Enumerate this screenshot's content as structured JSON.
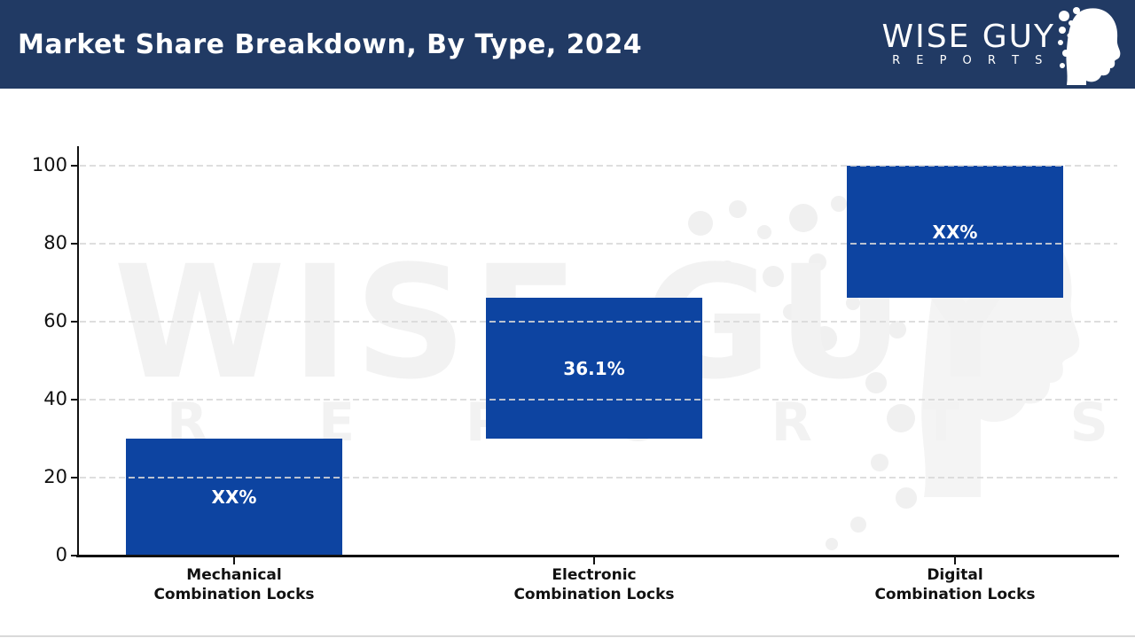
{
  "header": {
    "title": "Market Share Breakdown, By Type, 2024",
    "logo": {
      "wordmark": "WISE GUY",
      "subtext": "R E P O R T S"
    }
  },
  "watermark": {
    "line1": "WISE GUY",
    "line2": "R E P O R T S"
  },
  "chart_data": {
    "type": "bar",
    "subtype": "floating-waterfall",
    "title": "Market Share Breakdown, By Type, 2024",
    "categories": [
      "Mechanical Combination Locks",
      "Electronic Combination Locks",
      "Digital Combination Locks"
    ],
    "bars": [
      {
        "category": "Mechanical Combination Locks",
        "start": 0,
        "end": 30,
        "label": "XX%"
      },
      {
        "category": "Electronic Combination Locks",
        "start": 30,
        "end": 66.1,
        "label": "36.1%"
      },
      {
        "category": "Digital Combination Locks",
        "start": 66.1,
        "end": 100,
        "label": "XX%"
      }
    ],
    "yticks": [
      0,
      20,
      40,
      60,
      80,
      100
    ],
    "ylim": [
      0,
      105
    ],
    "xlabel": "",
    "ylabel": "",
    "grid": "horizontal dashed, drawn over bars",
    "legend": "none"
  },
  "colors": {
    "header_bg": "#213a64",
    "bar": "#0d44a1",
    "grid": "#d8d8d8",
    "axis": "#111111",
    "watermark": "#f2f2f2",
    "label_on_bar": "#ffffff",
    "bottom_line": "#d9d9d9"
  }
}
